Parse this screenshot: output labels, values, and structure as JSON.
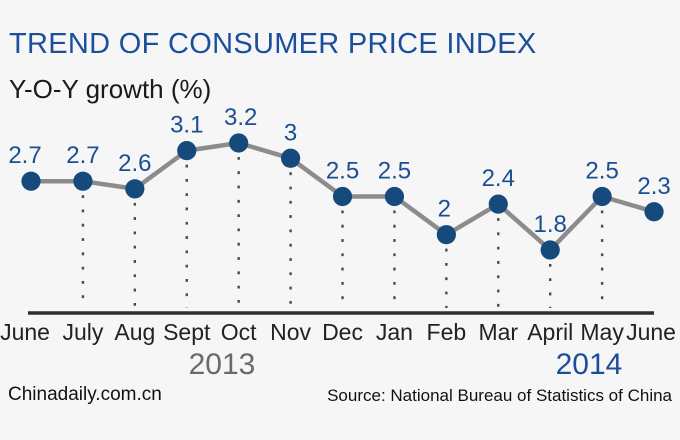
{
  "chart_data": {
    "type": "line",
    "title": "TREND OF CONSUMER PRICE INDEX",
    "subtitle": "Y-O-Y growth (%)",
    "categories": [
      "June",
      "July",
      "Aug",
      "Sept",
      "Oct",
      "Nov",
      "Dec",
      "Jan",
      "Feb",
      "Mar",
      "April",
      "May",
      "June"
    ],
    "values": [
      2.7,
      2.7,
      2.6,
      3.1,
      3.2,
      3,
      2.5,
      2.5,
      2,
      2.4,
      1.8,
      2.5,
      2.3
    ],
    "point_labels": [
      "2.7",
      "2.7",
      "2.6",
      "3.1",
      "3.2",
      "3",
      "2.5",
      "2.5",
      "2",
      "2.4",
      "1.8",
      "2.5",
      "2.3"
    ],
    "year_labels": [
      {
        "label": "2013",
        "color": "#6a6a6a"
      },
      {
        "label": "2014",
        "color": "#1b4f9c"
      }
    ],
    "ylim": [
      1.6,
      3.4
    ],
    "xlabel": "",
    "ylabel": "Y-O-Y growth (%)",
    "legend": "none",
    "grid": "dotted-vertical-guides",
    "colors": {
      "title": "#1b4f9c",
      "point": "#16497c",
      "series_line": "#8c8c8c",
      "point_label": "#1b4f93",
      "axis": "#2e2e2e",
      "month_label": "#222222",
      "dotted_guide": "#4a4a4a"
    }
  },
  "footer": {
    "brand": "Chinadaily.com.cn",
    "source": "Source: National Bureau of Statistics of China"
  }
}
